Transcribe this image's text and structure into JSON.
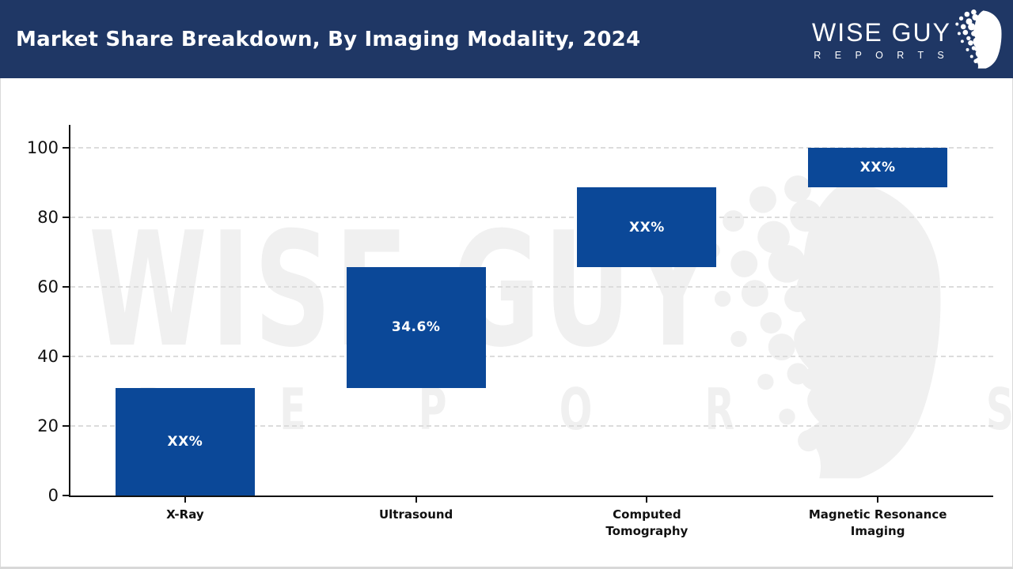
{
  "header": {
    "title": "Market Share Breakdown, By Imaging Modality, 2024",
    "bg_color": "#1f3765",
    "logo": {
      "line1": "WISE GUY",
      "line2": "R E P O R T S"
    }
  },
  "watermark": {
    "line1": "WISE GUY",
    "line2": "R E P O R T S"
  },
  "chart_data": {
    "type": "bar",
    "variant": "floating-waterfall-segments",
    "title": "Market Share Breakdown, By Imaging Modality, 2024",
    "categories": [
      "X-Ray",
      "Ultrasound",
      "Computed\nTomography",
      "Magnetic Resonance\nImaging"
    ],
    "segments": [
      {
        "category": "X-Ray",
        "start": 0,
        "end": 31,
        "label": "XX%"
      },
      {
        "category": "Ultrasound",
        "start": 31,
        "end": 65.6,
        "label": "34.6%"
      },
      {
        "category": "Computed Tomography",
        "start": 65.6,
        "end": 88.7,
        "label": "XX%"
      },
      {
        "category": "Magnetic Resonance Imaging",
        "start": 88.7,
        "end": 100,
        "label": "XX%"
      }
    ],
    "ylim": [
      0,
      100
    ],
    "yticks": [
      "0",
      "20",
      "40",
      "60",
      "80",
      "100"
    ],
    "xlabel": "",
    "ylabel": "",
    "legend": "none",
    "grid": "horizontal-dashed",
    "bar_color": "#0b4898",
    "bar_label_color": "#ffffff",
    "axis_color": "#111111",
    "gridline_color": "#dcdcdc"
  }
}
